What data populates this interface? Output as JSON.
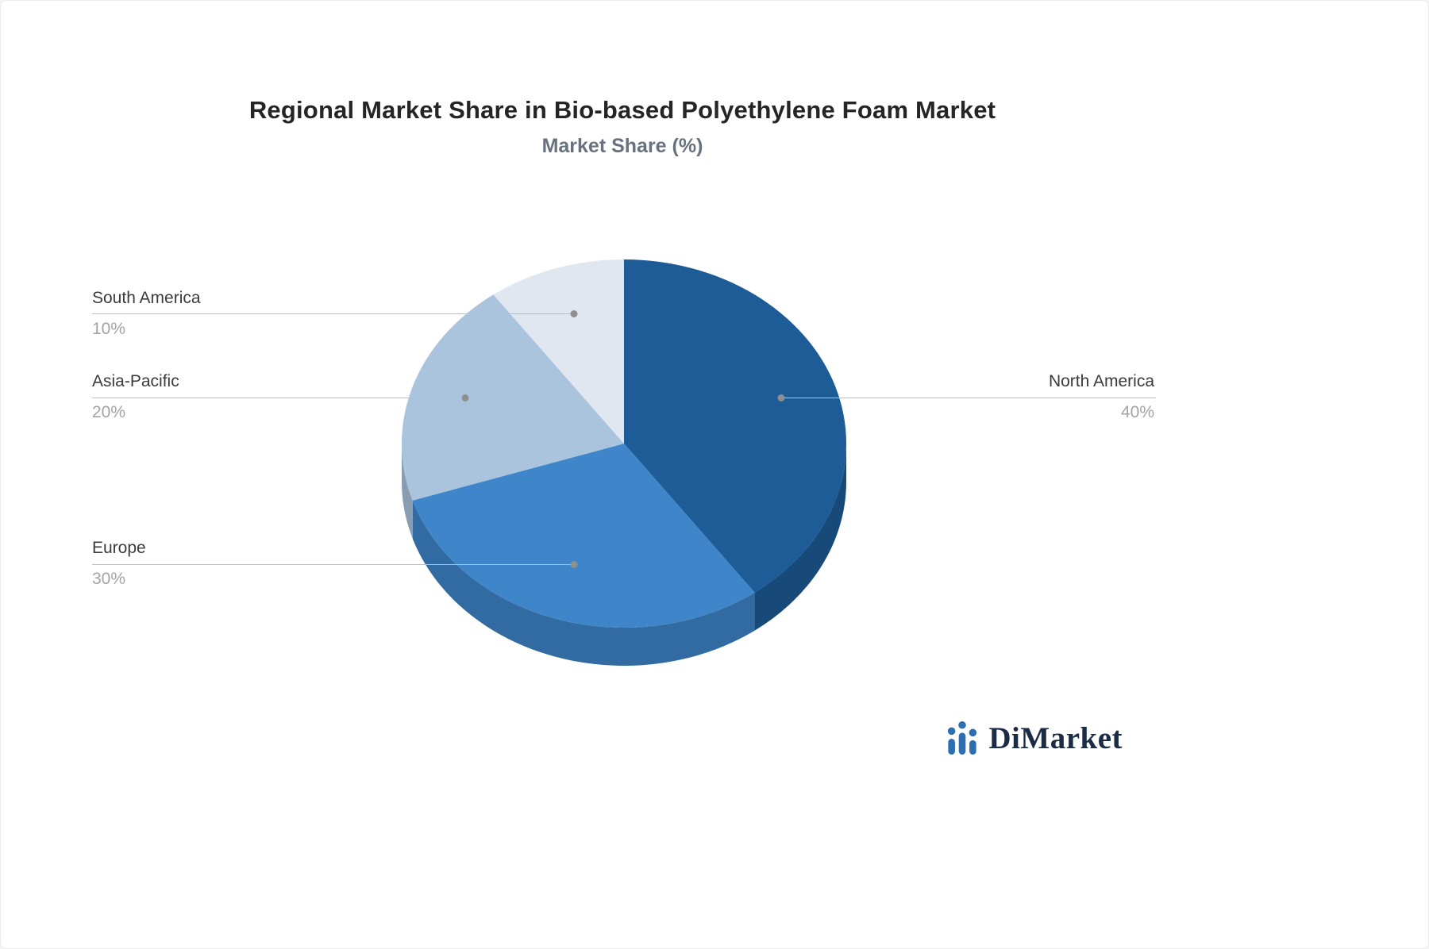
{
  "chart_data": {
    "type": "pie",
    "style": "3d",
    "title": "Regional Market Share in Bio-based Polyethylene Foam Market",
    "subtitle": "Market Share (%)",
    "unit": "%",
    "start_angle_deg": 0,
    "direction": "clockwise",
    "legend_position": "none",
    "slices": [
      {
        "label": "North America",
        "value": 40,
        "pct_label": "40%",
        "color": "#1e5c97"
      },
      {
        "label": "Europe",
        "value": 30,
        "pct_label": "30%",
        "color": "#3e86c9"
      },
      {
        "label": "Asia-Pacific",
        "value": 20,
        "pct_label": "20%",
        "color": "#abc4de"
      },
      {
        "label": "South America",
        "value": 10,
        "pct_label": "10%",
        "color": "#e0e7f1"
      }
    ],
    "leader_line_color": "#bdbdbd",
    "leader_dot_color": "#8f8f8f",
    "label_name_color": "#3b3b3b",
    "label_value_color": "#a3a3a3"
  },
  "brand": {
    "name": "DiMarket",
    "icon_color": "#2e6fb2",
    "text_color": "#1c2c44"
  }
}
